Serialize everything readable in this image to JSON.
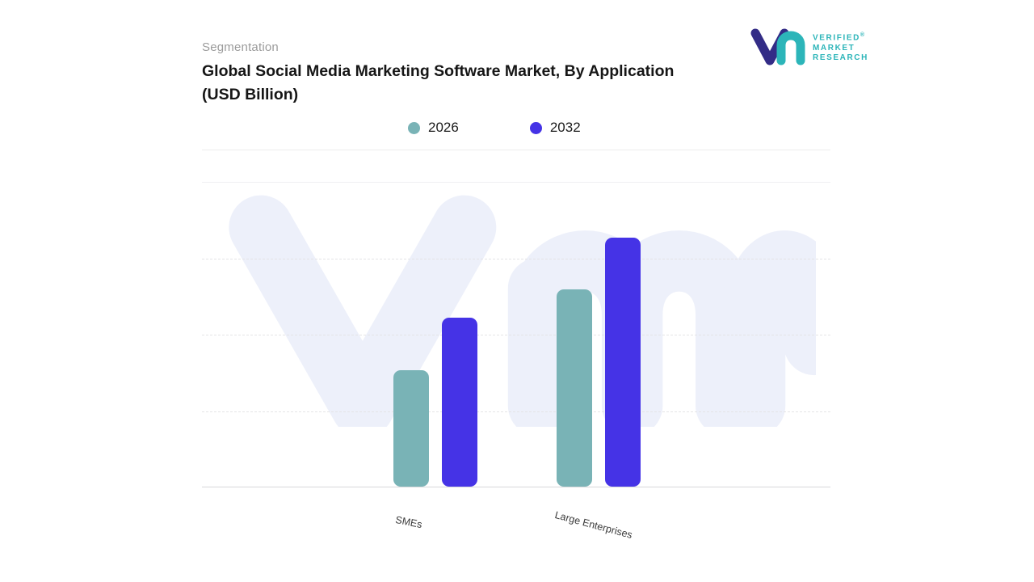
{
  "header": {
    "eyebrow": "Segmentation",
    "title_line1": "Global Social Media Marketing Software Market, By Application",
    "title_line2": "(USD Billion)"
  },
  "logo": {
    "line1": "VERIFIED",
    "line2": "MARKET",
    "line3": "RESEARCH",
    "registered_mark": "®"
  },
  "chart_data": {
    "type": "bar",
    "title": "Global Social Media Marketing Software Market, By Application (USD Billion)",
    "ylabel": "USD Billion",
    "categories": [
      "SMEs",
      "Large Enterprises"
    ],
    "series": [
      {
        "name": "2026",
        "color": "#79b3b6",
        "values": [
          1.45,
          2.45
        ]
      },
      {
        "name": "2032",
        "color": "#4533e6",
        "values": [
          2.1,
          3.1
        ]
      }
    ],
    "ylim": [
      0,
      3.8
    ],
    "grid": "horizontal-dashed",
    "legend_position": "top",
    "colors": {
      "bar_2026": "#79b3b6",
      "bar_2032": "#4533e6",
      "watermark": "#edf0fa",
      "logo_teal": "#2cb5b9",
      "logo_navy": "#332c86",
      "baseline": "#d8d8da"
    }
  }
}
